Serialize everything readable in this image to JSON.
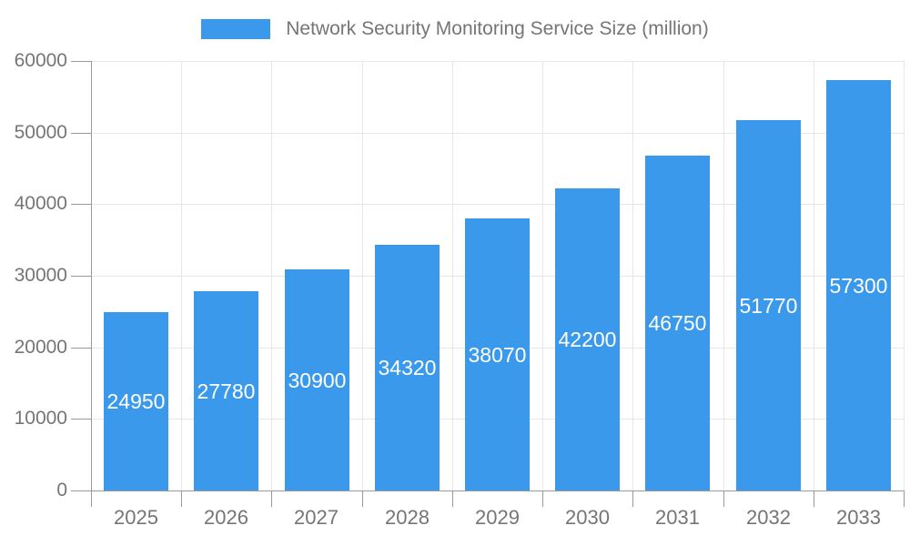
{
  "chart_data": {
    "type": "bar",
    "title": "Network Security Monitoring Service Size (million)",
    "categories": [
      "2025",
      "2026",
      "2027",
      "2028",
      "2029",
      "2030",
      "2031",
      "2032",
      "2033"
    ],
    "series": [
      {
        "name": "Network Security Monitoring Service Size (million)",
        "values": [
          24950,
          27780,
          30900,
          34320,
          38070,
          42200,
          46750,
          51770,
          57300
        ]
      }
    ],
    "values": [
      24950,
      27780,
      30900,
      34320,
      38070,
      42200,
      46750,
      51770,
      57300
    ],
    "value_labels": [
      "24950",
      "27780",
      "30900",
      "34320",
      "38070",
      "42200",
      "46750",
      "51770",
      "57300"
    ],
    "xlabel": "",
    "ylabel": "",
    "ylim": [
      0,
      60000
    ],
    "ytick_step": 10000,
    "ytick_labels": [
      "0",
      "10000",
      "20000",
      "30000",
      "40000",
      "50000",
      "60000"
    ],
    "grid": true,
    "legend_position": "top",
    "value_label_position": "inside-middle",
    "colors": {
      "bar": "#3B99EC",
      "grid": "#e6e6e6",
      "axis": "#999999",
      "text": "#757575",
      "value_label": "#ffffff",
      "background": "#ffffff"
    }
  }
}
